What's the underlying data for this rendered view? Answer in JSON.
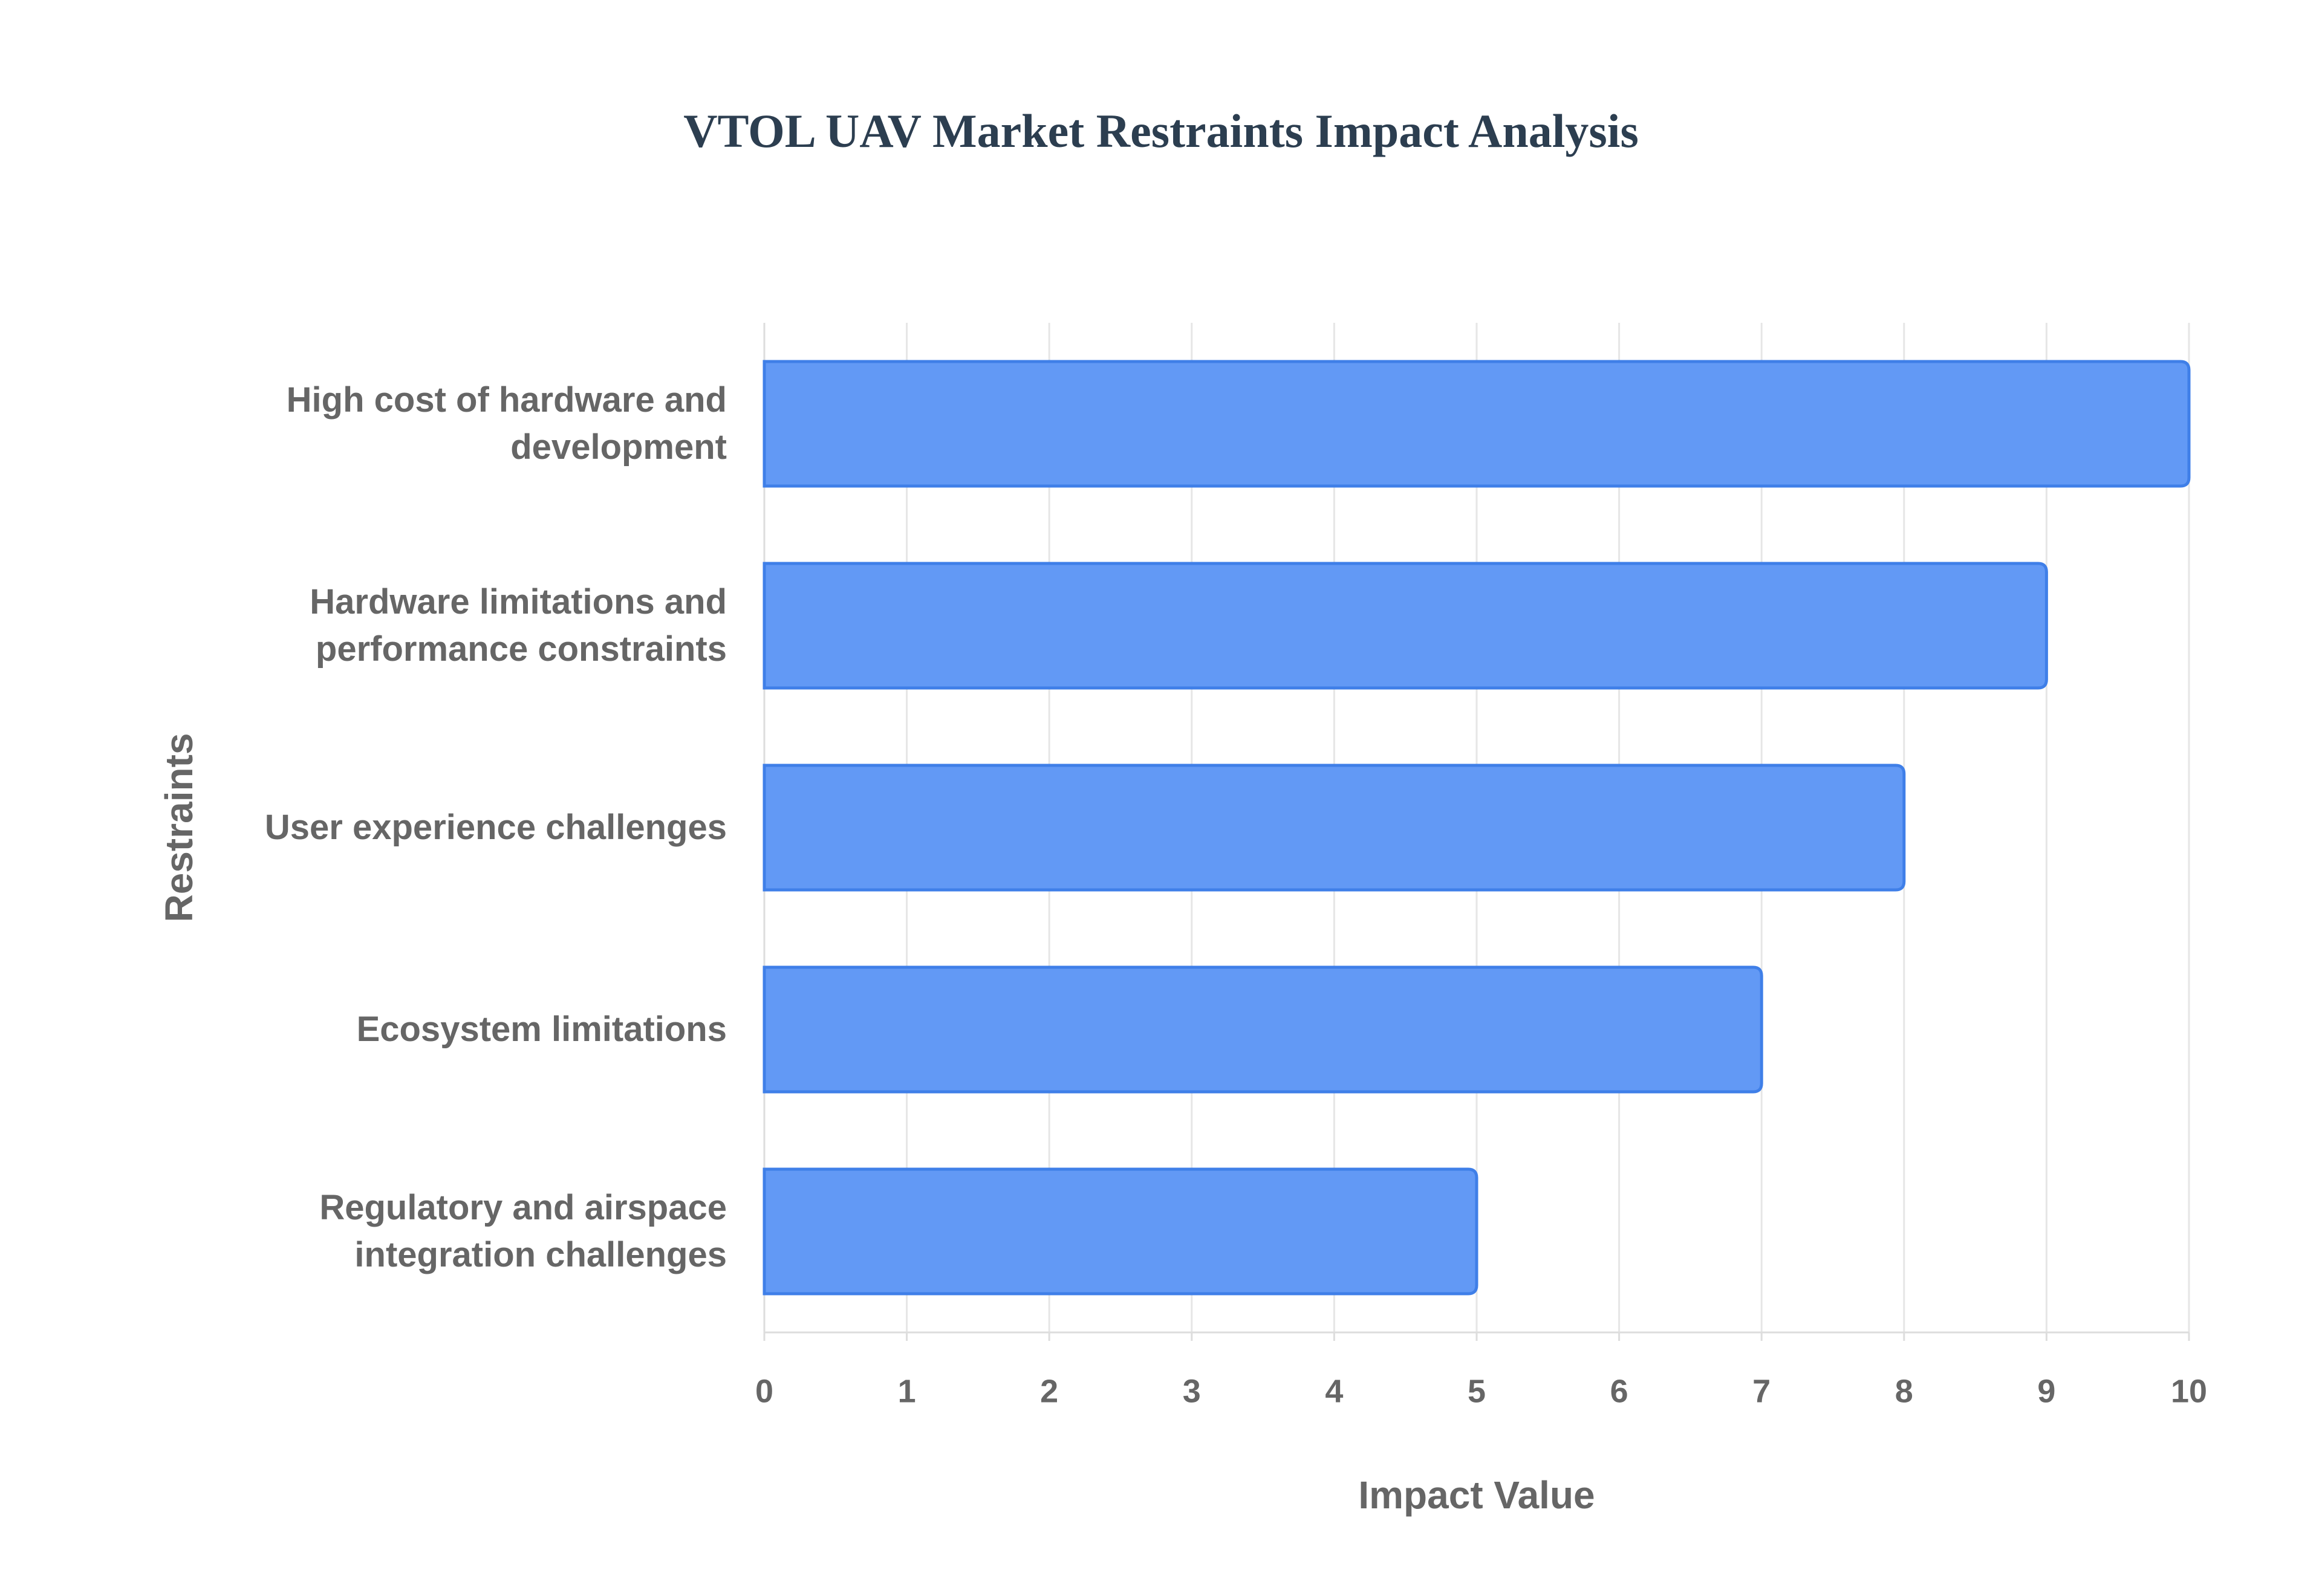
{
  "chart_data": {
    "type": "bar",
    "orientation": "horizontal",
    "title": "VTOL UAV Market Restraints Impact Analysis",
    "x_label": "Impact Value",
    "y_label": "Restraints",
    "categories": [
      "High cost of hardware and development",
      "Hardware limitations and performance constraints",
      "User experience challenges",
      "Ecosystem limitations",
      "Regulatory and airspace integration challenges"
    ],
    "values": [
      10,
      9,
      8,
      7,
      5
    ],
    "color": "#6299f5",
    "edge_color": "#3f7fe8",
    "xlim": [
      0,
      10
    ],
    "xticks": [
      0,
      1,
      2,
      3,
      4,
      5,
      6,
      7,
      8,
      9,
      10
    ],
    "grid": true
  }
}
